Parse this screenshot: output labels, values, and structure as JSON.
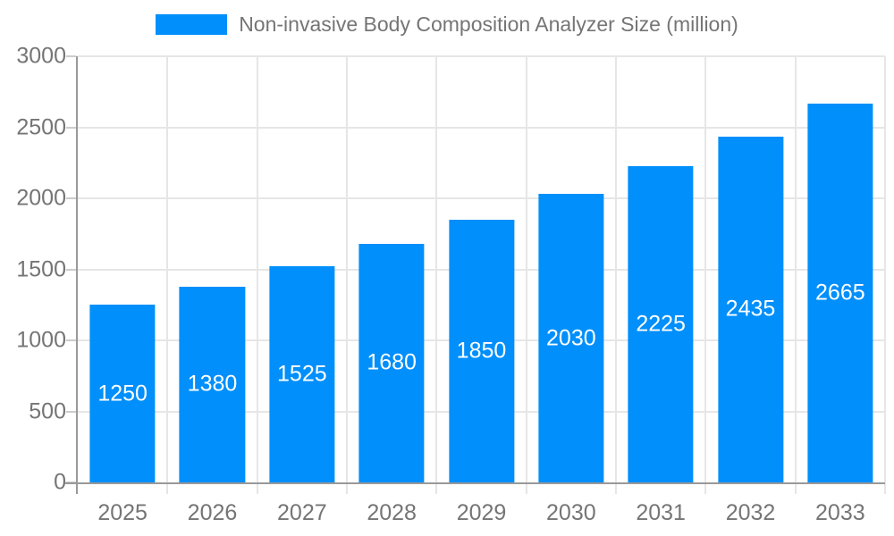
{
  "chart_data": {
    "type": "bar",
    "title": "Non-invasive Body Composition Analyzer Size (million)",
    "legend": {
      "label": "Non-invasive Body Composition Analyzer Size (million)",
      "position": "top",
      "swatch_color": "#008FFB"
    },
    "categories": [
      "2025",
      "2026",
      "2027",
      "2028",
      "2029",
      "2030",
      "2031",
      "2032",
      "2033"
    ],
    "series": [
      {
        "name": "Non-invasive Body Composition Analyzer Size (million)",
        "values": [
          1250,
          1380,
          1525,
          1680,
          1850,
          2030,
          2225,
          2435,
          2665
        ]
      }
    ],
    "xlabel": "",
    "ylabel": "",
    "ylim": [
      0,
      3000
    ],
    "yticks": [
      0,
      500,
      1000,
      1500,
      2000,
      2500,
      3000
    ],
    "grid": true,
    "colors": {
      "bar": "#008FFB",
      "grid": "#E6E6E6",
      "axis_line": "#999999",
      "tick": "#CCCCCC",
      "axis_label": "#757575",
      "bar_label": "#FFFFFF",
      "background": "#FFFFFF"
    }
  }
}
